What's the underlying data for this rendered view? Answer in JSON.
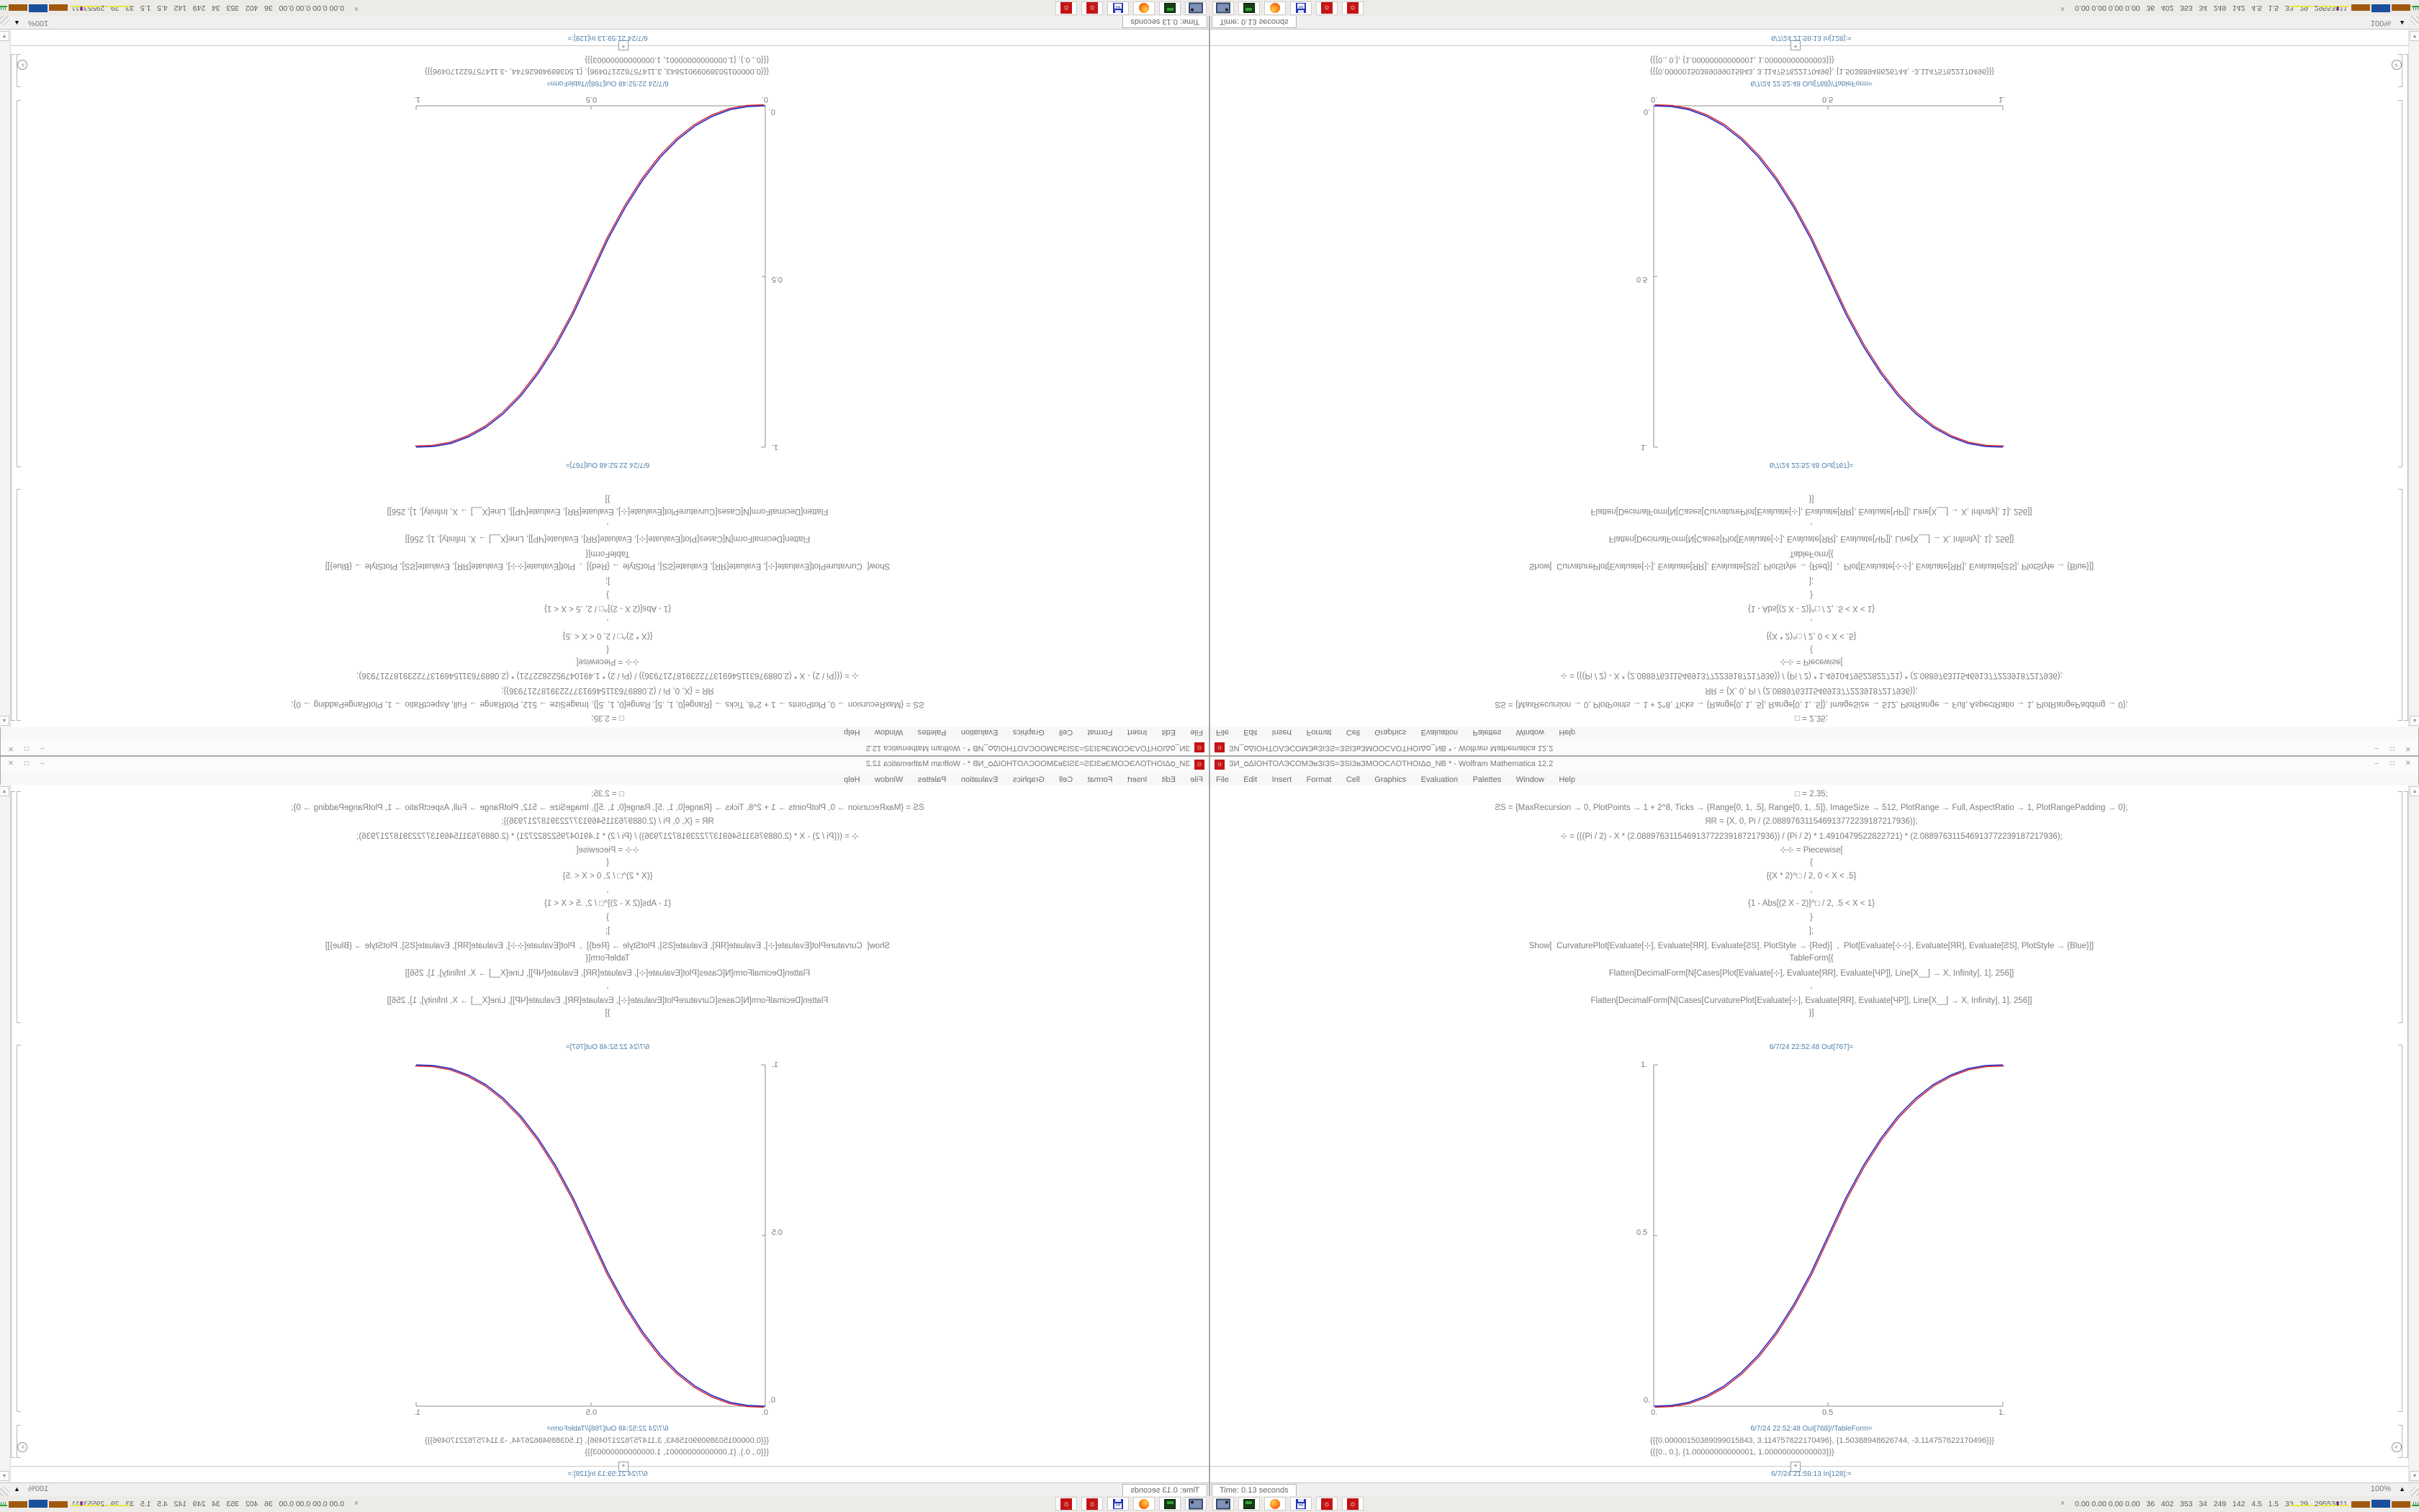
{
  "window": {
    "title": "ЗИ_ѻΔІОНТОΛЭСОМЭʁЗІЗS=ЗSІЗʁЗМООСΛОТНОІΔѻ_NB * - Wolfram Mathematica 12.2",
    "app_icon": "☼",
    "minimize": "–",
    "maximize": "□",
    "close": "✕"
  },
  "menu": [
    "File",
    "Edit",
    "Insert",
    "Format",
    "Cell",
    "Graphics",
    "Evaluation",
    "Palettes",
    "Window",
    "Help"
  ],
  "notebook": {
    "code_lines": [
      "□ = 2.35;",
      "ƧS = {MaxRecursion → 0, PlotPoints → 1 + 2^8, Ticks → {Range[0, 1, .5], Range[0, 1, .5]}, ImageSize → 512, PlotRange → Full, AspectRatio → 1, PlotRangePadding → 0};",
      "ЯR = {X, 0, Pi / (2.088976311546913772239187217936)};",
      "⊹ = (((Pi / 2) - X * (2.088976311546913772239187217936)) / (Pi / 2) * 1.4910479522822721) * (2.088976311546913772239187217936);",
      "⊹⊹ = Piecewise[",
      "{",
      "{(X * 2)^□ / 2, 0 < X < .5}",
      ",",
      "{1 - Abs[(2 X - 2)]^□ / 2, .5 < X < 1}",
      "}",
      "];",
      "Show[  CurvaturePlot[Evaluate[⊹], Evaluate[ЯR], Evaluate[ƧS], PlotStyle → {Red}]  ,  Plot[Evaluate[⊹⊹], Evaluate[ЯR], Evaluate[ƧS], PlotStyle → {Blue}]]",
      "TableForm[{",
      "Flatten[DecimalForm[N[Cases[Plot[Evaluate[⊹], Evaluate[ЯR], Evaluate[ЧP]], Line[X__] → X, Infinity], 1], 256]]",
      ",",
      "Flatten[DecimalForm[N[Cases[CurvaturePlot[Evaluate[⊹], Evaluate[ЯR], Evaluate[ЧP]], Line[X__] → X, Infinity], 1], 256]]",
      "}]"
    ],
    "out_plot_label": "6/7/24 22:52:48 Out[767]=",
    "out_table_label": "6/7/24 22:52:48 Out[768]//TableForm=",
    "table_rows": [
      "{{{0.00000150389099015843, 3.114757622170496}, {1.50388948626744, -3.114757622170496}}}",
      "{{{0., 0.}, {1.00000000000001, 1.00000000000003}}}"
    ],
    "insert_plus": "+",
    "next_in_label": "6/7/24 21:59:13 In[128]:=",
    "scroll_up": "▴",
    "scroll_down": "▾",
    "expand_chevron": "»"
  },
  "chart_data": {
    "type": "line",
    "title": "",
    "xlabel": "",
    "ylabel": "",
    "xlim": [
      0,
      1
    ],
    "ylim": [
      0,
      1
    ],
    "grid": false,
    "x_tick_labels": [
      "0.",
      "0.5",
      "1."
    ],
    "y_tick_labels": [
      "1.",
      "0.5",
      "0."
    ],
    "series": [
      {
        "name": "CurvaturePlot (Red)",
        "color": "#cc2233",
        "points": [
          [
            0,
            0
          ],
          [
            0.05,
            0.002
          ],
          [
            0.1,
            0.011
          ],
          [
            0.15,
            0.03
          ],
          [
            0.2,
            0.058
          ],
          [
            0.25,
            0.098
          ],
          [
            0.3,
            0.15
          ],
          [
            0.35,
            0.216
          ],
          [
            0.4,
            0.296
          ],
          [
            0.45,
            0.39
          ],
          [
            0.5,
            0.5
          ],
          [
            0.55,
            0.61
          ],
          [
            0.6,
            0.704
          ],
          [
            0.65,
            0.784
          ],
          [
            0.7,
            0.85
          ],
          [
            0.75,
            0.902
          ],
          [
            0.8,
            0.942
          ],
          [
            0.85,
            0.97
          ],
          [
            0.9,
            0.989
          ],
          [
            0.95,
            0.998
          ],
          [
            1,
            1
          ]
        ]
      },
      {
        "name": "Plot (Blue)",
        "color": "#2b2bc8",
        "points": [
          [
            0,
            0
          ],
          [
            0.05,
            0.002
          ],
          [
            0.1,
            0.011
          ],
          [
            0.15,
            0.03
          ],
          [
            0.2,
            0.058
          ],
          [
            0.25,
            0.098
          ],
          [
            0.3,
            0.15
          ],
          [
            0.35,
            0.216
          ],
          [
            0.4,
            0.296
          ],
          [
            0.45,
            0.39
          ],
          [
            0.5,
            0.5
          ],
          [
            0.55,
            0.61
          ],
          [
            0.6,
            0.704
          ],
          [
            0.65,
            0.784
          ],
          [
            0.7,
            0.85
          ],
          [
            0.75,
            0.902
          ],
          [
            0.8,
            0.942
          ],
          [
            0.85,
            0.97
          ],
          [
            0.9,
            0.989
          ],
          [
            0.95,
            0.998
          ],
          [
            1,
            1
          ]
        ]
      }
    ]
  },
  "status": {
    "time": "Time: 0.13 seconds",
    "magnification": "100%",
    "mag_arrow": "▲"
  },
  "taskbar": {
    "chevron": "»",
    "numbers": "0.00 0.00 0.00 0.00   36   402   353   34   249   142   4.5   1.5   33   29   29553811",
    "icons": [
      "screenshot-monitor",
      "tape-drive",
      "firefox",
      "floppy-64",
      "mathematica-gear",
      "mathematica-gear"
    ],
    "floppy_label": "64"
  },
  "colors": {
    "red_curve": "#cc2233",
    "blue_curve": "#2b2bc8",
    "cell_label": "#4f7fa8",
    "code_text": "#7d7d7d",
    "gear_icon_bg": "#c41414"
  }
}
